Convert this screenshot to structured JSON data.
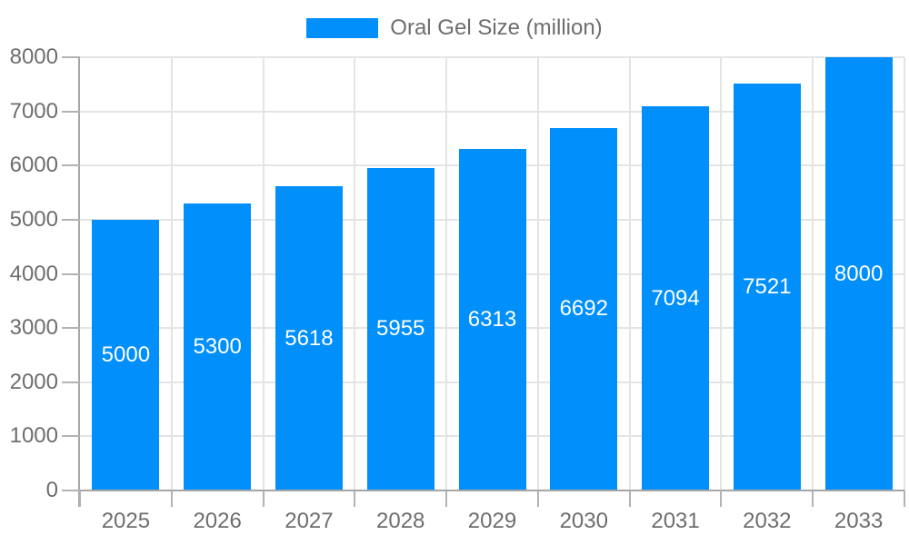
{
  "legend": {
    "label": "Oral Gel Size (million)"
  },
  "colors": {
    "bar": "#008FFB",
    "axis": "#a6a6a6",
    "tick": "#b3b3b3",
    "grid": "#e4e4e4",
    "text": "#6e6e6e",
    "bar_label": "#ffffff",
    "background": "#ffffff"
  },
  "chart_data": {
    "type": "bar",
    "title": "",
    "categories": [
      "2025",
      "2026",
      "2027",
      "2028",
      "2029",
      "2030",
      "2031",
      "2032",
      "2033"
    ],
    "series": [
      {
        "name": "Oral Gel Size (million)",
        "values": [
          5000,
          5300,
          5618,
          5955,
          6313,
          6692,
          7094,
          7521,
          8000
        ]
      }
    ],
    "xlabel": "",
    "ylabel": "",
    "ylim": [
      0,
      8000
    ],
    "ytick_interval": 1000,
    "ytick_labels": [
      "0",
      "1000",
      "2000",
      "3000",
      "4000",
      "5000",
      "6000",
      "7000",
      "8000"
    ],
    "grid": true,
    "legend_position": "top-center",
    "bar_label_position": "inside-center"
  }
}
